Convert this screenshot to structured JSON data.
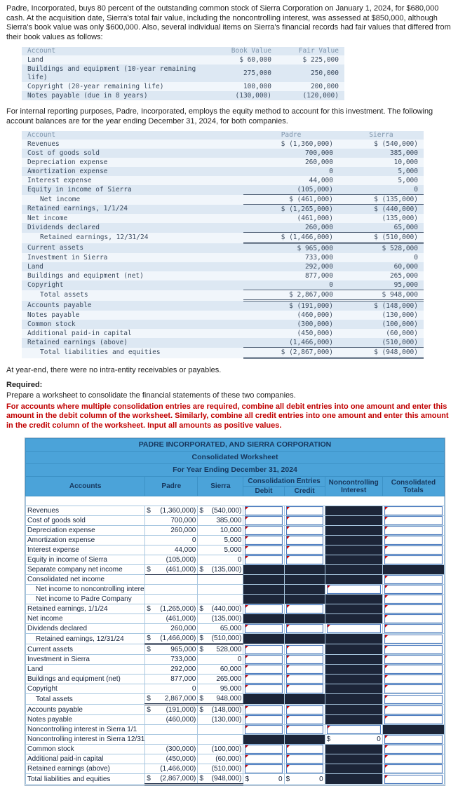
{
  "page": {
    "intro": "Padre, Incorporated, buys 80 percent of the outstanding common stock of Sierra Corporation on January 1, 2024, for $680,000 cash. At the acquisition date, Sierra's total fair value, including the noncontrolling interest, was assessed at $850,000, although Sierra's book value was only $600,000. Also, several individual items on Sierra's financial records had fair values that differed from their book values as follows:",
    "equity_note": "For internal reporting purposes, Padre, Incorporated, employs the equity method to account for this investment. The following account balances are for the year ending December 31, 2024, for both companies.",
    "year_end_note": "At year-end, there were no intra-entity receivables or payables.",
    "required_label": "Required:",
    "required_text": "Prepare a worksheet to consolidate the financial statements of these two companies.",
    "required_red": "For accounts where multiple consolidation entries are required, combine all debit entries into one amount and enter this amount in the debit column of the worksheet. Similarly, combine all credit entries into one amount and enter this amount in the credit column of the worksheet. Input all amounts as positive values."
  },
  "colors": {
    "worksheet_header_blue": "#4ba3d9",
    "worksheet_header_text": "#17375d",
    "instruction_red": "#c00000",
    "blocked_cell_navy": "#1c2538",
    "input_marker_red": "#cc0000",
    "table_stripe_blue": "#dde8f3"
  },
  "fair_value_table": {
    "headers": [
      "Account",
      "Book Value",
      "Fair Value"
    ],
    "rows": [
      [
        "Land",
        "$ 60,000",
        "$ 225,000"
      ],
      [
        "Buildings and equipment (10-year remaining life)",
        "275,000",
        "250,000"
      ],
      [
        "Copyright (20-year remaining life)",
        "100,000",
        "200,000"
      ],
      [
        "Notes payable (due in 8 years)",
        "(130,000)",
        "(120,000)"
      ]
    ]
  },
  "balances_table": {
    "headers": [
      "Account",
      "Padre",
      "Sierra"
    ],
    "rows": [
      {
        "account": "Revenues",
        "padre": "$ (1,360,000)",
        "sierra": "$ (540,000)"
      },
      {
        "account": "Cost of goods sold",
        "padre": "700,000",
        "sierra": "385,000"
      },
      {
        "account": "Depreciation expense",
        "padre": "260,000",
        "sierra": "10,000"
      },
      {
        "account": "Amortization expense",
        "padre": "0",
        "sierra": "5,000"
      },
      {
        "account": "Interest expense",
        "padre": "44,000",
        "sierra": "5,000"
      },
      {
        "account": "Equity in income of Sierra",
        "padre": "(105,000)",
        "sierra": "0"
      },
      {
        "account": "Net income",
        "indent": true,
        "rule": "sub",
        "padre": "$ (461,000)",
        "sierra": "$ (135,000)"
      },
      {
        "account": "Retained earnings, 1/1/24",
        "padre": "$ (1,265,000)",
        "sierra": "$ (440,000)"
      },
      {
        "account": "Net income",
        "padre": "(461,000)",
        "sierra": "(135,000)"
      },
      {
        "account": "Dividends declared",
        "padre": "260,000",
        "sierra": "65,000"
      },
      {
        "account": "Retained earnings, 12/31/24",
        "indent": true,
        "rule": "tot",
        "padre": "$ (1,466,000)",
        "sierra": "$ (510,000)"
      },
      {
        "account": "Current assets",
        "padre": "$ 965,000",
        "sierra": "$ 528,000"
      },
      {
        "account": "Investment in Sierra",
        "padre": "733,000",
        "sierra": "0"
      },
      {
        "account": "Land",
        "padre": "292,000",
        "sierra": "60,000"
      },
      {
        "account": "Buildings and equipment (net)",
        "padre": "877,000",
        "sierra": "265,000"
      },
      {
        "account": "Copyright",
        "padre": "0",
        "sierra": "95,000"
      },
      {
        "account": "Total assets",
        "indent": true,
        "rule": "tot",
        "padre": "$ 2,867,000",
        "sierra": "$ 948,000"
      },
      {
        "account": "Accounts payable",
        "padre": "$ (191,000)",
        "sierra": "$ (148,000)"
      },
      {
        "account": "Notes payable",
        "padre": "(460,000)",
        "sierra": "(130,000)"
      },
      {
        "account": "Common stock",
        "padre": "(300,000)",
        "sierra": "(100,000)"
      },
      {
        "account": "Additional paid-in capital",
        "padre": "(450,000)",
        "sierra": "(60,000)"
      },
      {
        "account": "Retained earnings (above)",
        "padre": "(1,466,000)",
        "sierra": "(510,000)"
      },
      {
        "account": "Total liabilities and equities",
        "indent": true,
        "rule": "tot",
        "padre": "$ (2,867,000)",
        "sierra": "$ (948,000)"
      }
    ]
  },
  "worksheet": {
    "titles": [
      "PADRE INCORPORATED, AND SIERRA CORPORATION",
      "Consolidated Worksheet",
      "For Year Ending December 31, 2024"
    ],
    "columns": {
      "accounts": "Accounts",
      "padre": "Padre",
      "sierra": "Sierra",
      "entries_group": "Consolidation Entries",
      "debit": "Debit",
      "credit": "Credit",
      "nci": "Noncontrolling Interest",
      "totals": "Consolidated Totals"
    },
    "rows": [
      {
        "label": "Revenues",
        "padre": "$(1,360,000)",
        "sierra": "$ (540,000)",
        "debit": "input",
        "credit": "input",
        "nci": "blocked",
        "total": "input"
      },
      {
        "label": "Cost of goods sold",
        "padre": "700,000",
        "sierra": "385,000",
        "debit": "input",
        "credit": "input",
        "nci": "blocked",
        "total": "input"
      },
      {
        "label": "Depreciation expense",
        "padre": "260,000",
        "sierra": "10,000",
        "debit": "input",
        "credit": "input",
        "nci": "blocked",
        "total": "input"
      },
      {
        "label": "Amortization expense",
        "padre": "0",
        "sierra": "5,000",
        "debit": "input",
        "credit": "input",
        "nci": "blocked",
        "total": "input"
      },
      {
        "label": "Interest expense",
        "padre": "44,000",
        "sierra": "5,000",
        "debit": "input",
        "credit": "input",
        "nci": "blocked",
        "total": "input"
      },
      {
        "label": "Equity in income of Sierra",
        "padre": "(105,000)",
        "sierra": "0",
        "debit": "input",
        "credit": "input",
        "nci": "blocked",
        "total": "input"
      },
      {
        "label": "Separate company net income",
        "rule": "sub",
        "padre": "$ (461,000)",
        "sierra": "$ (135,000)",
        "debit": "blocked",
        "credit": "blocked",
        "nci": "blocked",
        "total": "blocked"
      },
      {
        "label": "Consolidated net income",
        "padre": "",
        "sierra": "",
        "debit": "blocked",
        "credit": "blocked",
        "nci": "blocked",
        "total": "input"
      },
      {
        "label": "Net income to noncontrolling interest",
        "indent": true,
        "padre": "",
        "sierra": "",
        "debit": "blocked",
        "credit": "blocked",
        "nci": "input",
        "total": "input"
      },
      {
        "label": "Net income to Padre Company",
        "indent": true,
        "padre": "",
        "sierra": "",
        "debit": "blocked",
        "credit": "blocked",
        "nci": "blocked",
        "total": "input"
      },
      {
        "label": "Retained earnings, 1/1/24",
        "padre": "$(1,265,000)",
        "sierra": "$ (440,000)",
        "debit": "input",
        "credit": "input",
        "nci": "blocked",
        "total": "input"
      },
      {
        "label": "Net income",
        "padre": "(461,000)",
        "sierra": "(135,000)",
        "debit": "blocked",
        "credit": "blocked",
        "nci": "blocked",
        "total": "input"
      },
      {
        "label": "Dividends declared",
        "padre": "260,000",
        "sierra": "65,000",
        "debit": "input",
        "credit": "input",
        "nci": "input",
        "total": "input"
      },
      {
        "label": "Retained earnings, 12/31/24",
        "indent": true,
        "rule": "tot",
        "padre": "$(1,466,000)",
        "sierra": "$ (510,000)",
        "debit": "blocked",
        "credit": "blocked",
        "nci": "blocked",
        "total": "input"
      },
      {
        "label": "Current assets",
        "padre": "$ 965,000",
        "sierra": "$ 528,000",
        "debit": "input",
        "credit": "input",
        "nci": "blocked",
        "total": "input"
      },
      {
        "label": "Investment in Sierra",
        "padre": "733,000",
        "sierra": "0",
        "debit": "input",
        "credit": "input",
        "nci": "blocked",
        "total": "input"
      },
      {
        "label": "Land",
        "padre": "292,000",
        "sierra": "60,000",
        "debit": "input",
        "credit": "input",
        "nci": "blocked",
        "total": "input"
      },
      {
        "label": "Buildings and equipment (net)",
        "padre": "877,000",
        "sierra": "265,000",
        "debit": "input",
        "credit": "input",
        "nci": "blocked",
        "total": "input"
      },
      {
        "label": "Copyright",
        "padre": "0",
        "sierra": "95,000",
        "debit": "input",
        "credit": "input",
        "nci": "blocked",
        "total": "input"
      },
      {
        "label": "Total assets",
        "indent": true,
        "rule": "tot",
        "padre": "$ 2,867,000",
        "sierra": "$ 948,000",
        "debit": "blocked",
        "credit": "blocked",
        "nci": "blocked",
        "total": "input"
      },
      {
        "label": "Accounts payable",
        "padre": "$ (191,000)",
        "sierra": "$ (148,000)",
        "debit": "input",
        "credit": "input",
        "nci": "blocked",
        "total": "input"
      },
      {
        "label": "Notes payable",
        "padre": "(460,000)",
        "sierra": "(130,000)",
        "debit": "input",
        "credit": "input",
        "nci": "blocked",
        "total": "input"
      },
      {
        "label": "Noncontrolling interest in Sierra 1/1",
        "padre": "",
        "sierra": "",
        "debit": "input",
        "credit": "input",
        "nci": "input",
        "total": "blocked"
      },
      {
        "label": "Noncontrolling interest in Sierra 12/31",
        "padre": "",
        "sierra": "",
        "debit": "blocked",
        "credit": "blocked",
        "nci": "$ 0",
        "total": "input"
      },
      {
        "label": "Common stock",
        "padre": "(300,000)",
        "sierra": "(100,000)",
        "debit": "input",
        "credit": "input",
        "nci": "blocked",
        "total": "input"
      },
      {
        "label": "Additional paid-in capital",
        "padre": "(450,000)",
        "sierra": "(60,000)",
        "debit": "input",
        "credit": "input",
        "nci": "blocked",
        "total": "input"
      },
      {
        "label": "Retained earnings (above)",
        "padre": "(1,466,000)",
        "sierra": "(510,000)",
        "debit": "input",
        "credit": "input",
        "nci": "blocked",
        "total": "input"
      },
      {
        "label": "Total liabilities and equities",
        "rule": "tot",
        "padre": "$(2,867,000)",
        "sierra": "$ (948,000)",
        "debit": "$ 0",
        "credit": "$ 0",
        "nci": "blocked",
        "total": "input"
      }
    ]
  }
}
